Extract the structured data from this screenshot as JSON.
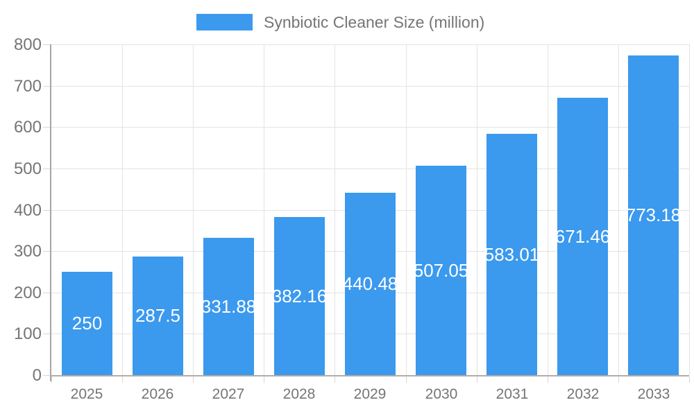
{
  "chart_data": {
    "type": "bar",
    "title": "Synbiotic Cleaner Size (million)",
    "series_name": "Synbiotic Cleaner Size (million)",
    "categories": [
      "2025",
      "2026",
      "2027",
      "2028",
      "2029",
      "2030",
      "2031",
      "2032",
      "2033"
    ],
    "values": [
      250,
      287.5,
      331.88,
      382.16,
      440.48,
      507.05,
      583.01,
      671.46,
      773.18
    ],
    "value_labels": [
      "250",
      "287.5",
      "331.88",
      "382.16",
      "440.48",
      "507.05",
      "583.01",
      "671.46",
      "773.18"
    ],
    "xlabel": "",
    "ylabel": "",
    "ylim": [
      0,
      800
    ],
    "y_ticks": [
      0,
      100,
      200,
      300,
      400,
      500,
      600,
      700,
      800
    ],
    "grid": true,
    "legend_position": "top-center",
    "colors": {
      "bar": "#3B99EE",
      "grid_line": "#E3E3E3",
      "axis_line_x": "#B3ACA6",
      "axis_line_y": "#A5A5A5",
      "tick_line": "#D6D6D6",
      "axis_text": "#757575",
      "legend_text": "#757575",
      "value_text": "#FFFFFF",
      "background": "#FFFFFF"
    }
  }
}
